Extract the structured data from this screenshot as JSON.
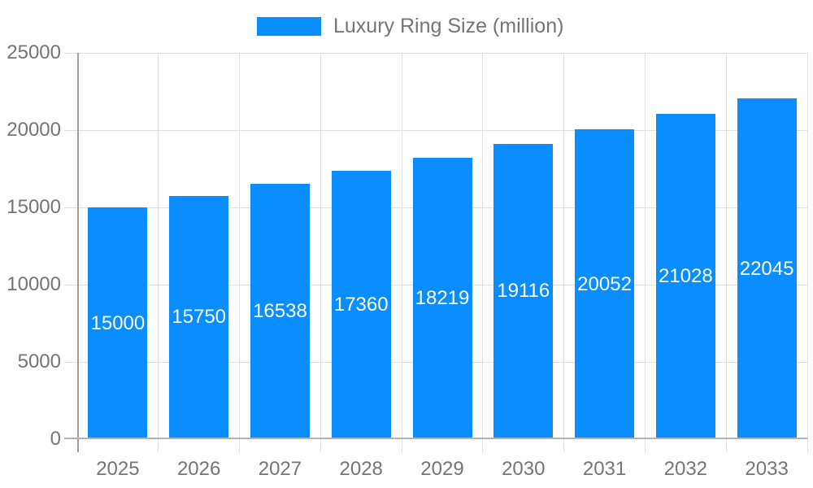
{
  "chart_data": {
    "type": "bar",
    "series_name": "Luxury Ring Size (million)",
    "categories": [
      "2025",
      "2026",
      "2027",
      "2028",
      "2029",
      "2030",
      "2031",
      "2032",
      "2033"
    ],
    "values": [
      15000,
      15750,
      16538,
      17360,
      18219,
      19116,
      20052,
      21028,
      22045
    ],
    "value_labels": [
      "15000",
      "15750",
      "16538",
      "17360",
      "18219",
      "19116",
      "20052",
      "21028",
      "22045"
    ],
    "title": "",
    "xlabel": "",
    "ylabel": "",
    "ylim": [
      0,
      25000
    ],
    "yticks": [
      0,
      5000,
      10000,
      15000,
      20000,
      25000
    ],
    "ytick_labels": [
      "0",
      "5000",
      "10000",
      "15000",
      "20000",
      "25000"
    ],
    "grid": true,
    "legend_position": "top",
    "colors": {
      "bar": "#0a8dff",
      "value_label": "#ffffff",
      "axis_label": "#757575",
      "legend_label": "#757575",
      "gridline": "#e0e0e0",
      "axis_line": "#9e9e9e",
      "baseline": "#b3b3b3",
      "background": "#ffffff"
    }
  }
}
